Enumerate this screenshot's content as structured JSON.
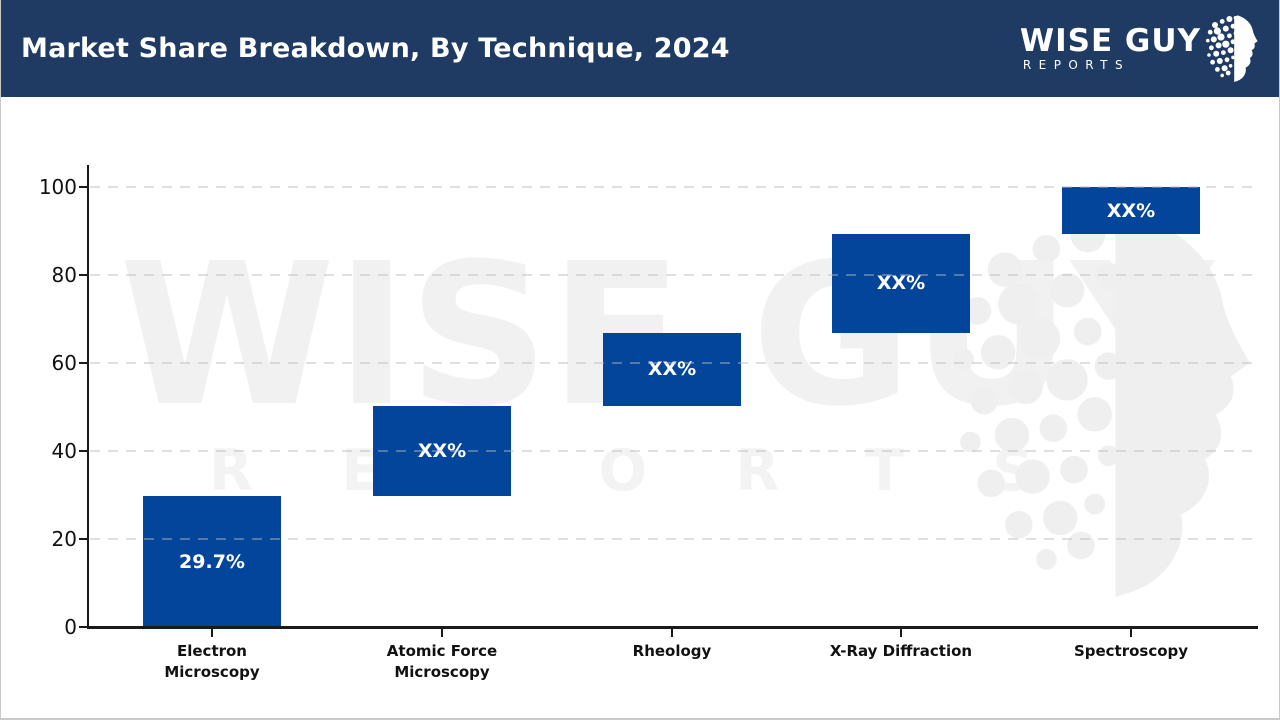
{
  "header": {
    "title": "Market Share Breakdown, By Technique, 2024",
    "background": "#1f3a63"
  },
  "brand": {
    "name": "WISE GUY",
    "subtitle": "REPORTS"
  },
  "watermark": {
    "line1": "WISE GUY",
    "line2": "REPORTS"
  },
  "chart_data": {
    "type": "bar",
    "subtype": "waterfall",
    "title": "Market Share Breakdown, By Technique, 2024",
    "categories": [
      "Electron Microscopy",
      "Atomic Force Microscopy",
      "Rheology",
      "X-Ray Diffraction",
      "Spectroscopy"
    ],
    "category_lines": [
      [
        "Electron",
        "Microscopy"
      ],
      [
        "Atomic Force",
        "Microscopy"
      ],
      [
        "Rheology"
      ],
      [
        "X-Ray Diffraction"
      ],
      [
        "Spectroscopy"
      ]
    ],
    "segments": [
      {
        "category": "Electron Microscopy",
        "start": 0,
        "end": 29.7,
        "label": "29.7%"
      },
      {
        "category": "Atomic Force Microscopy",
        "start": 29.7,
        "end": 50.2,
        "label": "XX%"
      },
      {
        "category": "Rheology",
        "start": 50.2,
        "end": 66.9,
        "label": "XX%"
      },
      {
        "category": "X-Ray Diffraction",
        "start": 66.9,
        "end": 89.3,
        "label": "XX%"
      },
      {
        "category": "Spectroscopy",
        "start": 89.3,
        "end": 100,
        "label": "XX%"
      }
    ],
    "ylim": [
      0,
      100
    ],
    "yticks": [
      0,
      20,
      40,
      60,
      80,
      100
    ],
    "xlabel": "",
    "ylabel": "",
    "grid": "dashed-horizontal",
    "legend": "none",
    "bar_color": "#04459c",
    "bar_label_color": "#ffffff",
    "axis_color": "#1a1a1a"
  }
}
